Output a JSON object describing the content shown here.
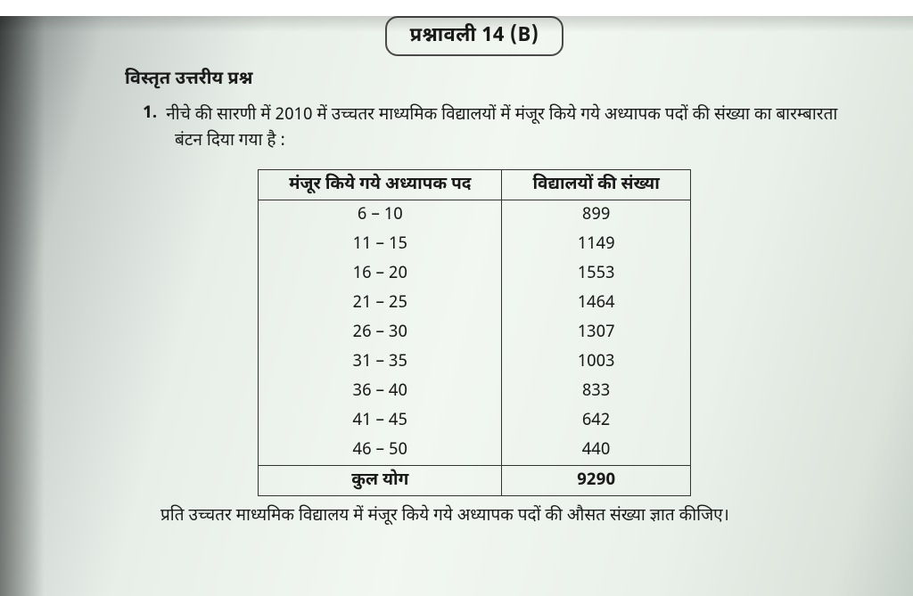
{
  "title": "प्रश्नावली 14 (B)",
  "subheading": "विस्तृत उत्तरीय प्रश्न",
  "question": {
    "number": "1.",
    "line1": "नीचे की सारणी में 2010 में उच्चतर माध्यमिक विद्यालयों में मंजूर किये गये अध्यापक पदों की संख्या का बारम्बारता",
    "line2": "बंटन दिया गया है :"
  },
  "table": {
    "columns": [
      "मंजूर किये गये अध्यापक पद",
      "विद्यालयों की संख्या"
    ],
    "rows": [
      [
        "6 – 10",
        "899"
      ],
      [
        "11 – 15",
        "1149"
      ],
      [
        "16 – 20",
        "1553"
      ],
      [
        "21 – 25",
        "1464"
      ],
      [
        "26 – 30",
        "1307"
      ],
      [
        "31 – 35",
        "1003"
      ],
      [
        "36 – 40",
        "833"
      ],
      [
        "41 – 45",
        "642"
      ],
      [
        "46 – 50",
        "440"
      ]
    ],
    "total_label": "कुल योग",
    "total_value": "9290",
    "border_color": "#333333",
    "font_size_pt": 14
  },
  "closing": "प्रति उच्चतर माध्यमिक विद्यालय में मंजूर किये गये अध्यापक पदों की औसत संख्या ज्ञात कीजिए।",
  "colors": {
    "text": "#1a1a1a",
    "page_bg_left": "#8f9694",
    "page_bg_right": "#eaf0ea"
  }
}
